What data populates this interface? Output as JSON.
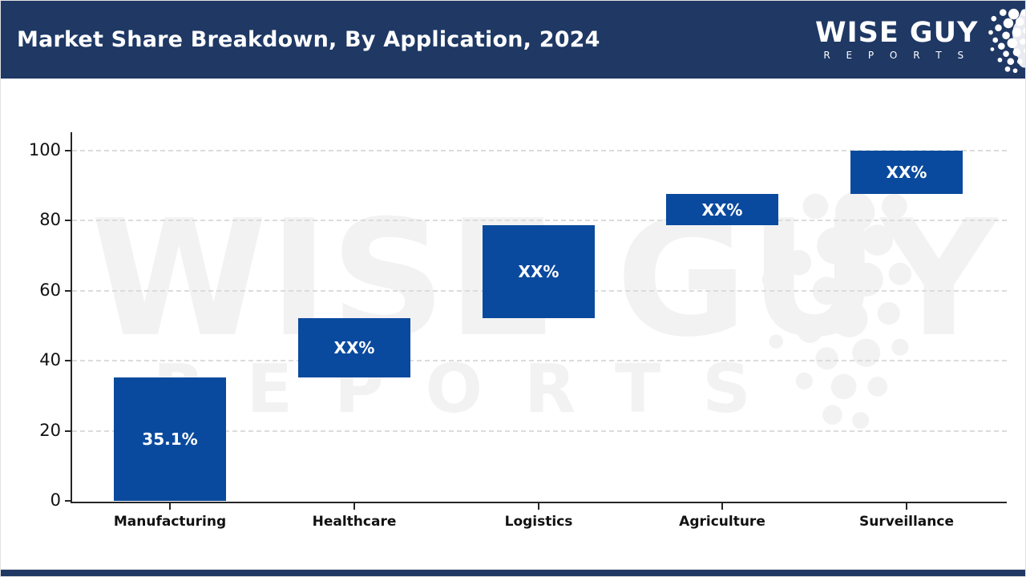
{
  "header": {
    "title": "Market Share Breakdown, By Application, 2024",
    "logo": {
      "wordmark": "WISE GUY",
      "subtext": "R E P O R T S"
    }
  },
  "watermark": {
    "wordmark": "WISE GUY",
    "subtext": "REPORTS"
  },
  "chart_data": {
    "type": "bar",
    "subtype": "waterfall",
    "title": "Market Share Breakdown, By Application, 2024",
    "categories": [
      "Manufacturing",
      "Healthcare",
      "Logistics",
      "Agriculture",
      "Surveillance"
    ],
    "series": [
      {
        "name": "Market share (%)",
        "segments": [
          {
            "category": "Manufacturing",
            "start": 0,
            "end": 35.1,
            "label": "35.1%"
          },
          {
            "category": "Healthcare",
            "start": 35.1,
            "end": 52.2,
            "label": "XX%"
          },
          {
            "category": "Logistics",
            "start": 52.2,
            "end": 78.6,
            "label": "XX%"
          },
          {
            "category": "Agriculture",
            "start": 78.6,
            "end": 87.5,
            "label": "XX%"
          },
          {
            "category": "Surveillance",
            "start": 87.5,
            "end": 100,
            "label": "XX%"
          }
        ]
      }
    ],
    "yticks": [
      0,
      20,
      40,
      60,
      80,
      100
    ],
    "ylim": [
      0,
      105
    ],
    "xlabel": "",
    "ylabel": "",
    "grid": "horizontal-dashed",
    "legend": "none",
    "bar_color": "#0a4a9e",
    "bar_label_color": "#ffffff"
  },
  "colors": {
    "header_bg": "#1f3864",
    "footer_bg": "#1f3864",
    "bar": "#0a4a9e",
    "grid": "#dcdcdc",
    "axis": "#262626",
    "watermark": "#f2f2f2"
  }
}
